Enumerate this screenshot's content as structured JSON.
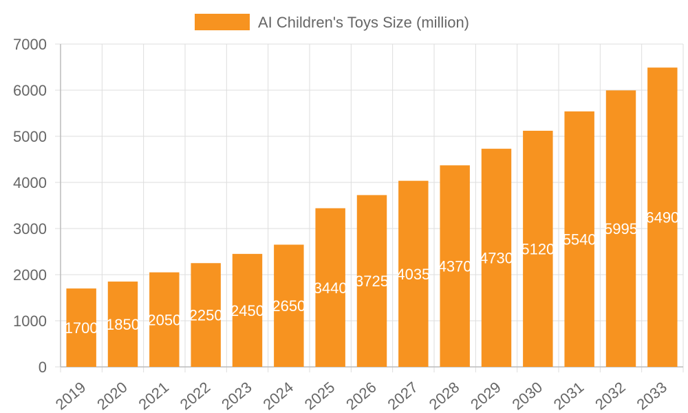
{
  "legend": {
    "label": "AI Children's Toys Size (million)"
  },
  "colors": {
    "bar": "#F79320",
    "grid": "#dddddd",
    "text": "#666666",
    "data_label": "#ffffff"
  },
  "chart_data": {
    "type": "bar",
    "categories": [
      "2019",
      "2020",
      "2021",
      "2022",
      "2023",
      "2024",
      "2025",
      "2026",
      "2027",
      "2028",
      "2029",
      "2030",
      "2031",
      "2032",
      "2033"
    ],
    "series": [
      {
        "name": "AI Children's Toys Size (million)",
        "values": [
          1700,
          1850,
          2050,
          2250,
          2450,
          2650,
          3440,
          3725,
          4035,
          4370,
          4730,
          5120,
          5540,
          5995,
          6490
        ]
      }
    ],
    "y_ticks": [
      "0",
      "1000",
      "2000",
      "3000",
      "4000",
      "5000",
      "6000",
      "7000"
    ],
    "ylim": [
      0,
      7000
    ],
    "grid": true,
    "legend_position": "top",
    "title": "",
    "xlabel": "",
    "ylabel": ""
  }
}
